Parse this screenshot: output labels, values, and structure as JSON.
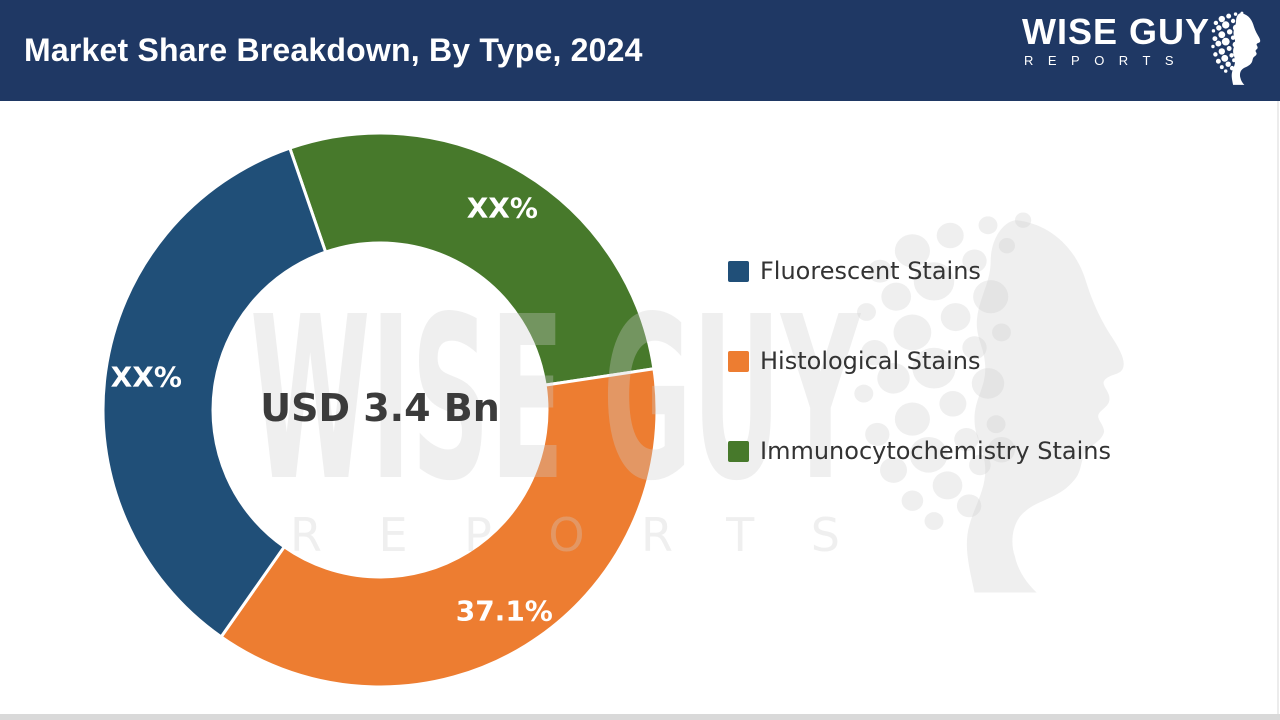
{
  "header": {
    "title": "Market Share Breakdown, By Type, 2024",
    "logo": {
      "line1": "WISE GUY",
      "line2": "REPORTS"
    }
  },
  "watermark": {
    "line1": "WISE GUY",
    "line2": "REPORTS"
  },
  "colors": {
    "header_bg": "#1f3864",
    "blue": "#204f78",
    "orange": "#ed7d31",
    "green": "#47792b",
    "legend_text": "#333333",
    "center_text": "#3b3b3b",
    "bottom_bar": "#d9d9d9"
  },
  "chart_data": {
    "type": "pie",
    "donut": true,
    "direction": "clockwise",
    "start_angle_deg": -19,
    "legend_position": "right",
    "center_label": "USD 3.4 Bn",
    "segments": [
      {
        "name": "Immunocytochemistry Stains",
        "value_pct": 27.9,
        "label": "XX%",
        "color": "#47792b"
      },
      {
        "name": "Histological Stains",
        "value_pct": 37.1,
        "label": "37.1%",
        "color": "#ed7d31"
      },
      {
        "name": "Fluorescent Stains",
        "value_pct": 35.0,
        "label": "XX%",
        "color": "#204f78"
      }
    ],
    "legend": [
      {
        "label": "Fluorescent Stains",
        "color": "#204f78"
      },
      {
        "label": "Histological Stains",
        "color": "#ed7d31"
      },
      {
        "label": "Immunocytochemistry Stains",
        "color": "#47792b"
      }
    ]
  }
}
